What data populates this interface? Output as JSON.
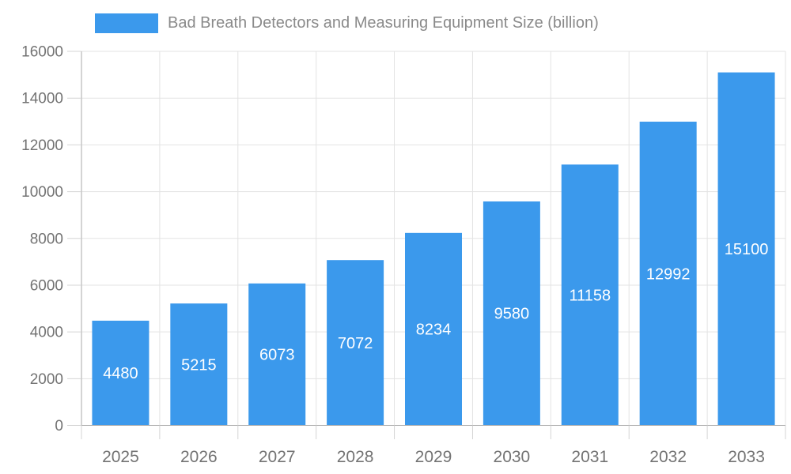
{
  "chart_data": {
    "type": "bar",
    "title": "Bad Breath Detectors and Measuring Equipment Size (billion)",
    "categories": [
      "2025",
      "2026",
      "2027",
      "2028",
      "2029",
      "2030",
      "2031",
      "2032",
      "2033"
    ],
    "values": [
      4480,
      5215,
      6073,
      7072,
      8234,
      9580,
      11158,
      12992,
      15100
    ],
    "xlabel": "",
    "ylabel": "",
    "ylim": [
      0,
      16000
    ],
    "yticks": [
      0,
      2000,
      4000,
      6000,
      8000,
      10000,
      12000,
      14000,
      16000
    ],
    "grid": true,
    "legend_position": "top-left",
    "bar_label_position": "inside-center",
    "colors": {
      "bar": "#3b99ec",
      "bar_label": "#ffffff",
      "axis_text": "#737373",
      "legend_text": "#8a8a8a",
      "grid_line": "#e3e3e3",
      "axis_line": "#b0b0b0",
      "tick_line": "#d4d4d4",
      "background": "#ffffff"
    }
  }
}
